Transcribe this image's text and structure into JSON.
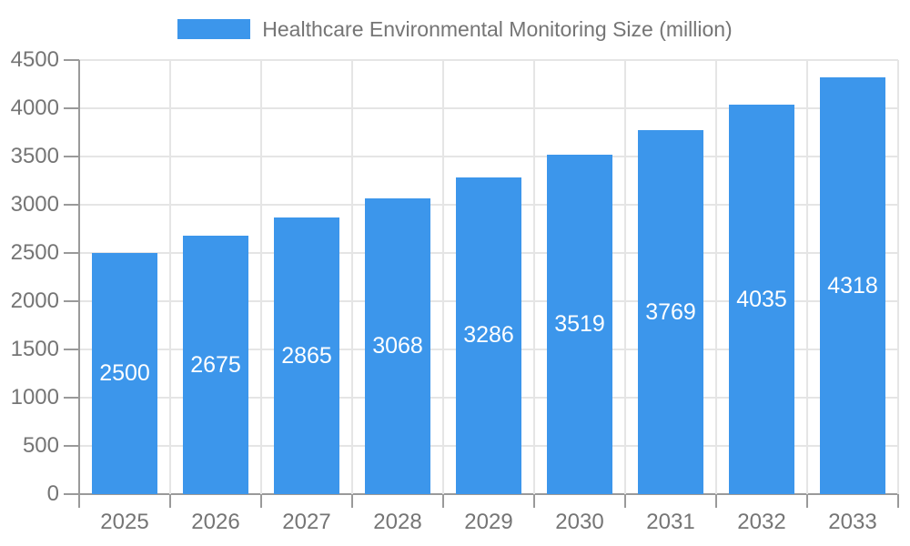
{
  "legend": {
    "label": "Healthcare Environmental Monitoring Size (million)"
  },
  "chart_data": {
    "type": "bar",
    "title": "Healthcare Environmental Monitoring Size (million)",
    "xlabel": "",
    "ylabel": "",
    "categories": [
      "2025",
      "2026",
      "2027",
      "2028",
      "2029",
      "2030",
      "2031",
      "2032",
      "2033"
    ],
    "series": [
      {
        "name": "Healthcare Environmental Monitoring Size (million)",
        "values": [
          2500,
          2675,
          2865,
          3068,
          3286,
          3519,
          3769,
          4035,
          4318
        ]
      }
    ],
    "ylim": [
      0,
      4500
    ],
    "ytick_step": 500,
    "yticks": [
      0,
      500,
      1000,
      1500,
      2000,
      2500,
      3000,
      3500,
      4000,
      4500
    ],
    "grid": true,
    "legend_position": "top",
    "value_labels": "inside-center",
    "colors": {
      "bar": "#3C96EB",
      "bar_label": "#FFFFFF",
      "axis_text": "#757575",
      "axis_line": "#9A9A9A",
      "grid": "#E5E5E5",
      "background": "#FFFFFF"
    }
  }
}
